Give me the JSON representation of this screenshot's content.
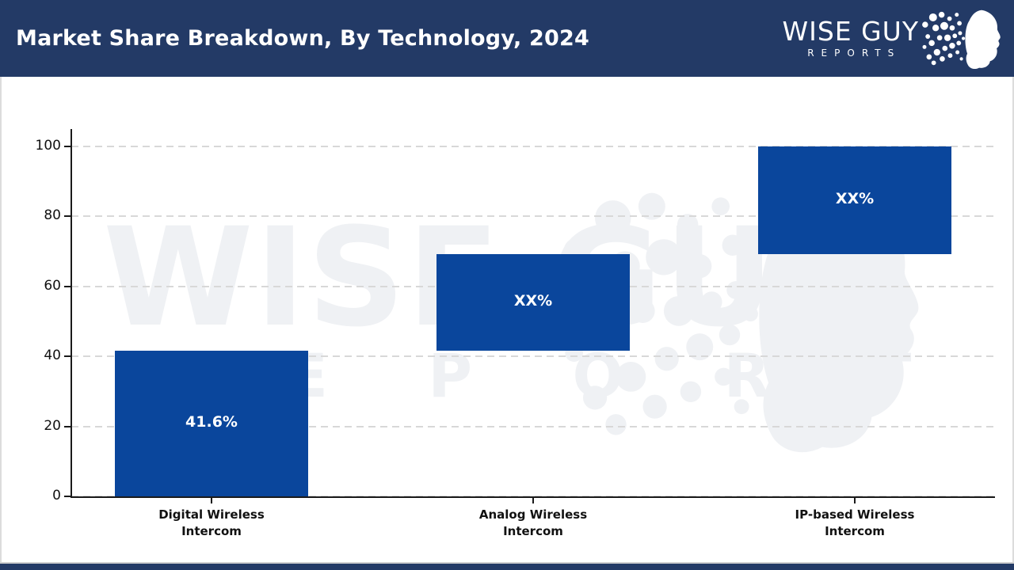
{
  "header": {
    "title": "Market Share Breakdown, By Technology, 2024",
    "logo": {
      "line1": "WISE GUY",
      "line2": "REPORTS"
    }
  },
  "watermark": {
    "line1": "WISE GUY",
    "line2": "R E P O R T S"
  },
  "colors": {
    "header_bg": "#233a66",
    "bar": "#0a469c",
    "bar_label": "#ffffff",
    "gridline": "#d8d8d8",
    "axis": "#1a1a1a",
    "watermark": "#eff1f4"
  },
  "chart_data": {
    "type": "bar",
    "subtype": "waterfall-stacked-percentage",
    "title": "Market Share Breakdown, By Technology, 2024",
    "categories": [
      "Digital Wireless\nIntercom",
      "Analog Wireless\nIntercom",
      "IP-based Wireless\nIntercom"
    ],
    "segments": [
      {
        "label": "41.6%",
        "start": 0,
        "end": 41.6
      },
      {
        "label": "XX%",
        "start": 41.6,
        "end": 69.3
      },
      {
        "label": "XX%",
        "start": 69.3,
        "end": 100
      }
    ],
    "values_shown_on_bars": [
      "41.6%",
      "XX%",
      "XX%"
    ],
    "xlabel": "",
    "ylabel": "",
    "ylim": [
      0,
      100
    ],
    "yticks": [
      0,
      20,
      40,
      60,
      80,
      100
    ],
    "grid": "horizontal-dashed",
    "legend": "none",
    "bar_color": "#0a469c",
    "bar_label_color": "#ffffff"
  }
}
